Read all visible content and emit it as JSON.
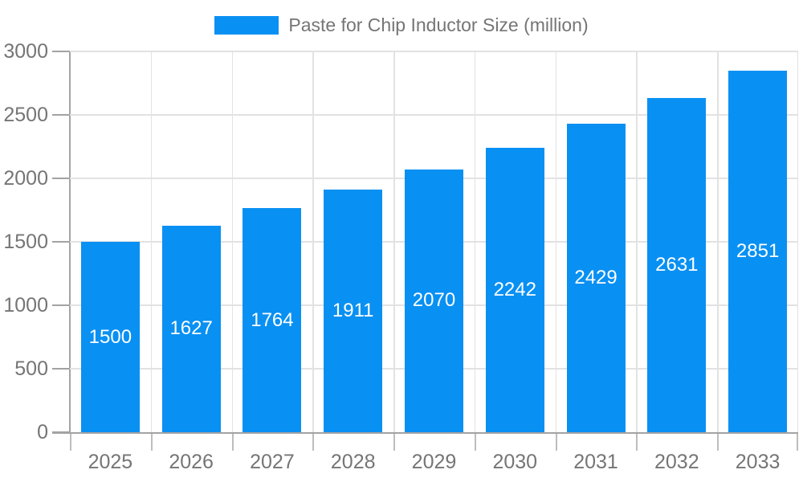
{
  "legend": {
    "label": "Paste for Chip Inductor Size (million)"
  },
  "chart_data": {
    "type": "bar",
    "title": "Paste for Chip Inductor Size (million)",
    "categories": [
      "2025",
      "2026",
      "2027",
      "2028",
      "2029",
      "2030",
      "2031",
      "2032",
      "2033"
    ],
    "series": [
      {
        "name": "Paste for Chip Inductor Size (million)",
        "values": [
          1500,
          1627,
          1764,
          1911,
          2070,
          2242,
          2429,
          2631,
          2851
        ]
      }
    ],
    "xlabel": "",
    "ylabel": "",
    "ylim": [
      0,
      3000
    ],
    "yticks": [
      0,
      500,
      1000,
      1500,
      2000,
      2500,
      3000
    ],
    "grid": true,
    "legend_position": "top",
    "colors": {
      "bar": "#0990f3",
      "grid": "#e2e2e2",
      "axis": "#a3a3a3",
      "text": "#757575",
      "value_label": "#ffffff",
      "background": "#ffffff"
    }
  }
}
